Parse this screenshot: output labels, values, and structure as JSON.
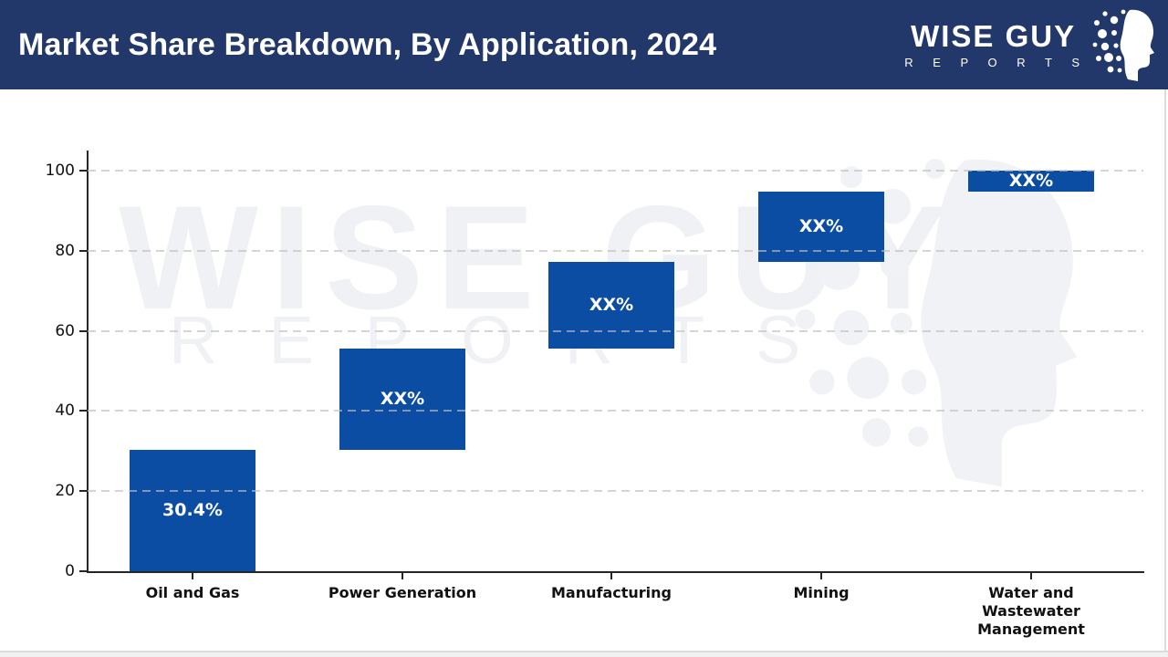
{
  "header": {
    "title": "Market Share Breakdown, By Application, 2024",
    "logo": {
      "name": "WISE GUY",
      "tagline": "R E P O R T S"
    }
  },
  "watermark": {
    "line1": "WISE GUY",
    "line2": "REPORTS"
  },
  "colors": {
    "header_bg": "#22386a",
    "bar": "#0b4da2",
    "bar_label": "#ffffff",
    "axis": "#262626",
    "grid": "#bebebe",
    "watermark": "#f0f1f4"
  },
  "chart_data": {
    "type": "bar",
    "subtype": "waterfall",
    "title": "Market Share Breakdown, By Application, 2024",
    "categories": [
      "Oil and Gas",
      "Power Generation",
      "Manufacturing",
      "Mining",
      "Water and Wastewater Management"
    ],
    "series": [
      {
        "category": "Oil and Gas",
        "category_lines": [
          "Oil and Gas"
        ],
        "start": 0,
        "end": 30.4,
        "label": "30.4%"
      },
      {
        "category": "Power Generation",
        "category_lines": [
          "Power Generation"
        ],
        "start": 30.4,
        "end": 55.6,
        "label": "XX%"
      },
      {
        "category": "Manufacturing",
        "category_lines": [
          "Manufacturing"
        ],
        "start": 55.6,
        "end": 77.2,
        "label": "XX%"
      },
      {
        "category": "Mining",
        "category_lines": [
          "Mining"
        ],
        "start": 77.2,
        "end": 94.8,
        "label": "XX%"
      },
      {
        "category": "Water and Wastewater Management",
        "category_lines": [
          "Water and",
          "Wastewater",
          "Management"
        ],
        "start": 94.8,
        "end": 100,
        "label": "XX%"
      }
    ],
    "xlabel": "",
    "ylabel": "",
    "ylim": [
      0,
      100
    ],
    "yticks": [
      0,
      20,
      40,
      60,
      80,
      100
    ],
    "grid": true,
    "grid_style": "dashed",
    "legend": false
  }
}
